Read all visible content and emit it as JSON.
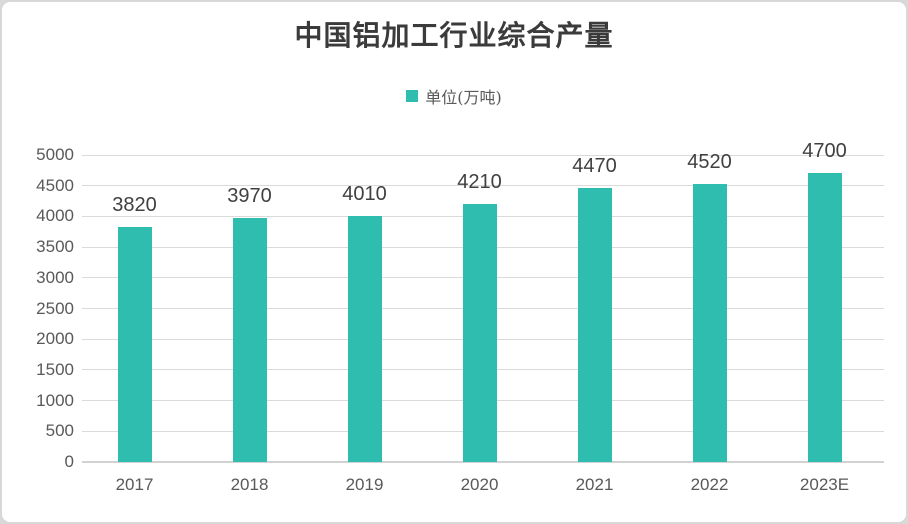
{
  "chart_data": {
    "type": "bar",
    "title": "中国铝加工行业综合产量",
    "legend_label": "单位(万吨)",
    "legend_position": "top",
    "categories": [
      "2017",
      "2018",
      "2019",
      "2020",
      "2021",
      "2022",
      "2023E"
    ],
    "values": [
      3820,
      3970,
      4010,
      4210,
      4470,
      4520,
      4700
    ],
    "xlabel": "",
    "ylabel": "",
    "ylim": [
      0,
      5000
    ],
    "ytick_step": 500,
    "grid": true,
    "colors": {
      "bar": "#2fbdb0",
      "gridline": "#dadada",
      "axis_line": "#d2d2d2",
      "axis_label": "#595959",
      "value_label": "#404040",
      "title": "#3b3b3b"
    }
  }
}
